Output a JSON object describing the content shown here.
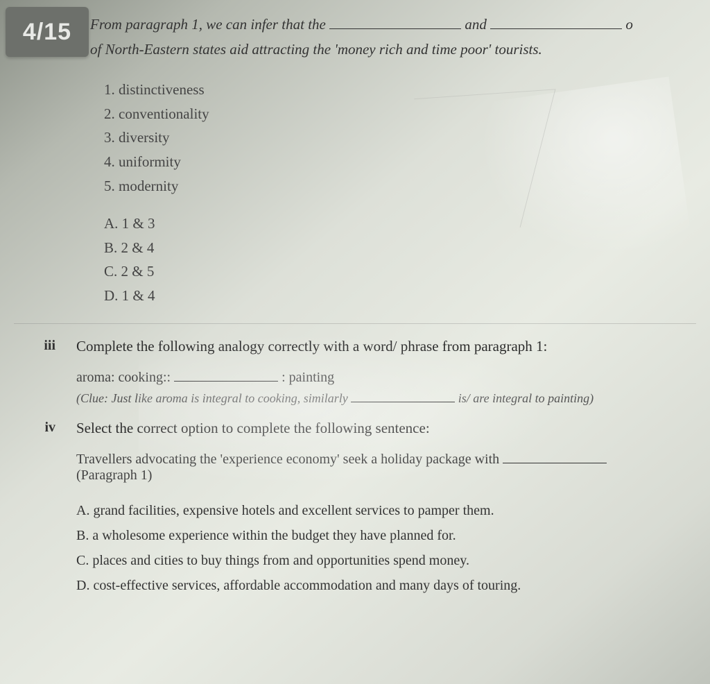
{
  "badge": "4/15",
  "q2": {
    "stem_part1": "From paragraph 1, we can infer that the",
    "stem_and": "and",
    "stem_part2": "of North-Eastern states aid attracting the 'money rich and time poor' tourists.",
    "word_bank": [
      "1. distinctiveness",
      "2. conventionality",
      "3. diversity",
      "4. uniformity",
      "5. modernity"
    ],
    "answers": [
      "A. 1 & 3",
      "B. 2 & 4",
      "C. 2 & 5",
      "D. 1 & 4"
    ]
  },
  "q3": {
    "label": "iii",
    "prompt": "Complete the following analogy correctly with a word/ phrase from paragraph 1:",
    "analogy_left": "aroma: cooking::",
    "analogy_right": ": painting",
    "clue_prefix": "(Clue: Just like aroma is integral to cooking, similarly",
    "clue_suffix": "is/ are integral to painting)"
  },
  "q4": {
    "label": "iv",
    "prompt": "Select the correct option to complete the following sentence:",
    "sentence": "Travellers advocating the 'experience economy' seek a holiday package with",
    "para_ref": "(Paragraph 1)",
    "options": [
      "A. grand facilities, expensive hotels and excellent services to pamper them.",
      "B. a wholesome experience within the budget they have planned for.",
      "C. places and cities to buy things from and opportunities spend money.",
      "D. cost-effective services, affordable accommodation and many days of touring."
    ]
  },
  "colors": {
    "badge_bg": "#6d706b",
    "badge_fg": "#e8e9e6",
    "text": "#2a2a2a",
    "muted": "#555"
  }
}
